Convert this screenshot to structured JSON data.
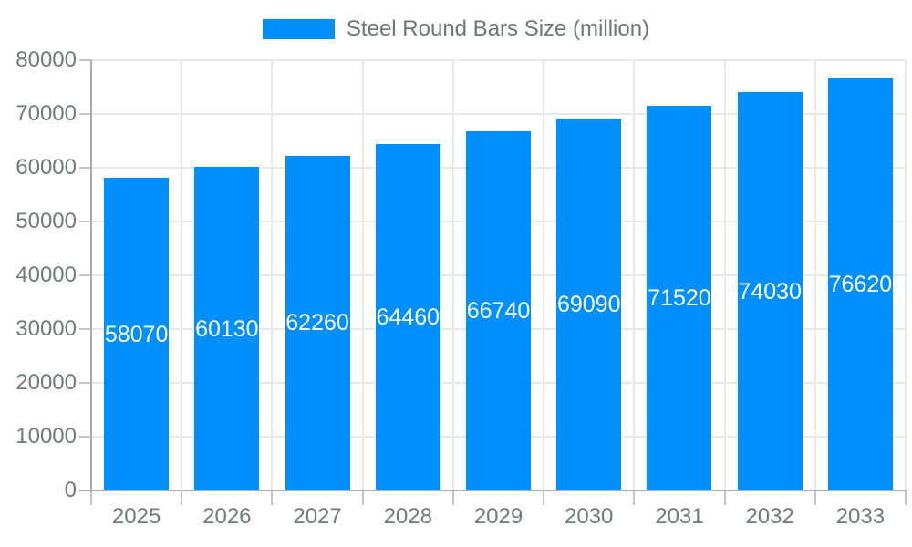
{
  "legend": {
    "label": "Steel Round Bars Size (million)"
  },
  "colors": {
    "bar": "#008FFB",
    "data_label": "#ffffff",
    "axis_label": "#75787b",
    "legend_label": "#707478",
    "gridline": "#e8e8e8",
    "tick": "#c4c4c4",
    "axis_line": "#aaaaaa"
  },
  "chart_data": {
    "type": "bar",
    "title": "Steel Round Bars Size (million)",
    "series": [
      {
        "name": "Steel Round Bars Size (million)",
        "values": [
          58070,
          60130,
          62260,
          64460,
          66740,
          69090,
          71520,
          74030,
          76620
        ]
      }
    ],
    "categories": [
      "2025",
      "2026",
      "2027",
      "2028",
      "2029",
      "2030",
      "2031",
      "2032",
      "2033"
    ],
    "values": [
      58070,
      60130,
      62260,
      64460,
      66740,
      69090,
      71520,
      74030,
      76620
    ],
    "data_labels": [
      "58070",
      "60130",
      "62260",
      "64460",
      "66740",
      "69090",
      "71520",
      "74030",
      "76620"
    ],
    "xlabel": "",
    "ylabel": "",
    "ylim": [
      0,
      80000
    ],
    "ytick_step": 10000,
    "ytick_labels": [
      "0",
      "10000",
      "20000",
      "30000",
      "40000",
      "50000",
      "60000",
      "70000",
      "80000"
    ],
    "grid": true,
    "legend_position": "top"
  }
}
